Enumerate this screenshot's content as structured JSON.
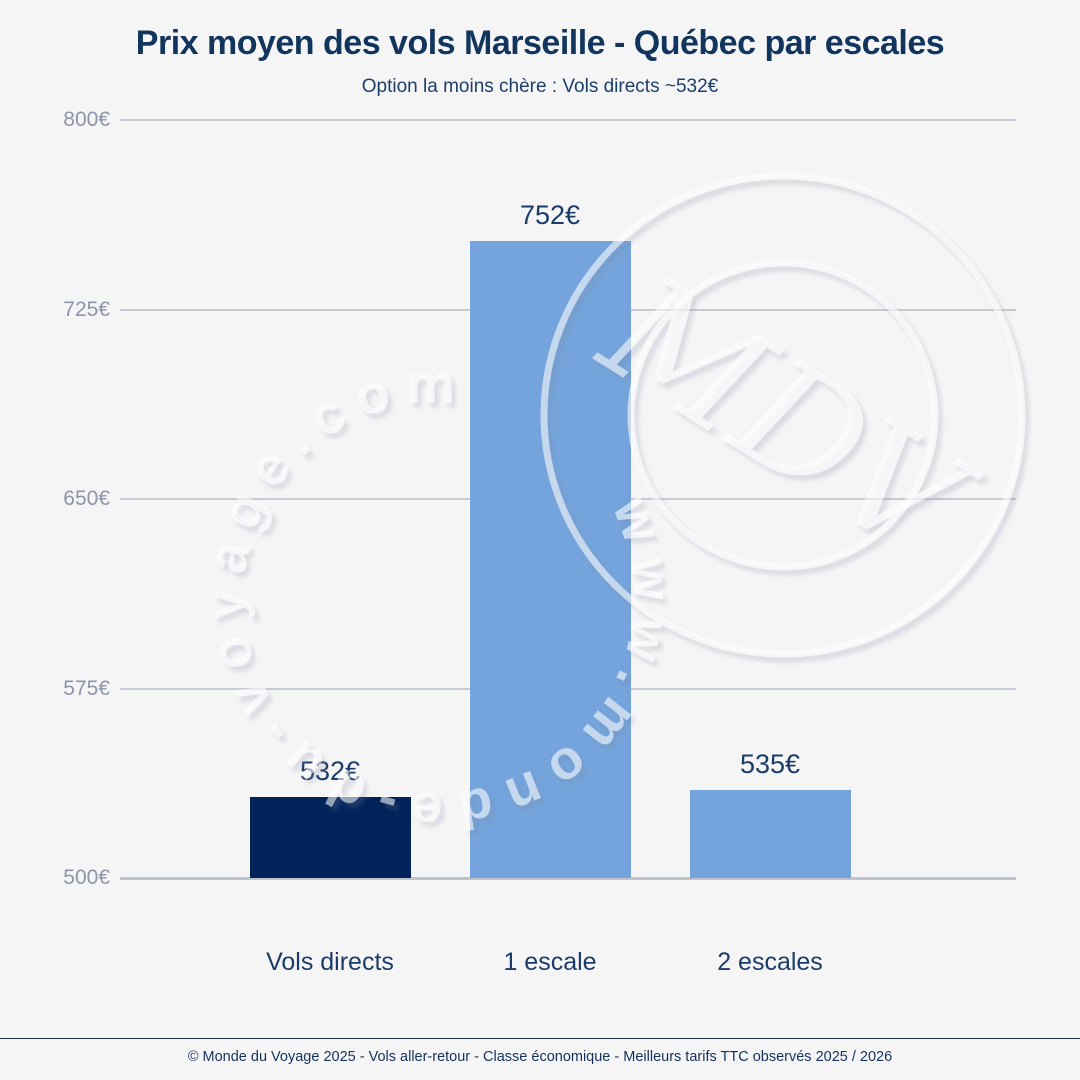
{
  "header": {
    "title": "Prix moyen des vols Marseille - Québec par escales",
    "subtitle": "Option la moins chère : Vols directs ~532€"
  },
  "chart_data": {
    "type": "bar",
    "title": "Prix moyen des vols Marseille - Québec par escales",
    "subtitle": "Option la moins chère : Vols directs ~532€",
    "categories": [
      "Vols directs",
      "1 escale",
      "2 escales"
    ],
    "values": [
      532,
      752,
      535
    ],
    "value_labels": [
      "532€",
      "752€",
      "535€"
    ],
    "bar_colors": [
      "#00235a",
      "#74a4db",
      "#74a4db"
    ],
    "xlabel": "",
    "ylabel": "",
    "ylim": [
      500,
      800
    ],
    "y_tick_values": [
      800,
      725,
      650,
      575,
      500
    ],
    "y_tick_labels": [
      "800€",
      "725€",
      "650€",
      "575€",
      "500€"
    ],
    "grid": true,
    "legend": "none",
    "currency": "EUR"
  },
  "watermark": {
    "ring_text": "www.monde-du-voyage.com",
    "center_text": "MDV"
  },
  "footer": {
    "text": "© Monde du Voyage 2025 - Vols aller-retour - Classe économique - Meilleurs tarifs TTC observés 2025 / 2026"
  },
  "colors": {
    "background": "#f5f5f6",
    "title": "#12355e",
    "subtitle": "#1d3e66",
    "accent_dark": "#00235a",
    "accent_light": "#74a4db",
    "axis_tick": "#8d95a9",
    "gridline": "#c6cad4",
    "baseline": "#bfc3cc",
    "footer_line": "#1d3156"
  }
}
